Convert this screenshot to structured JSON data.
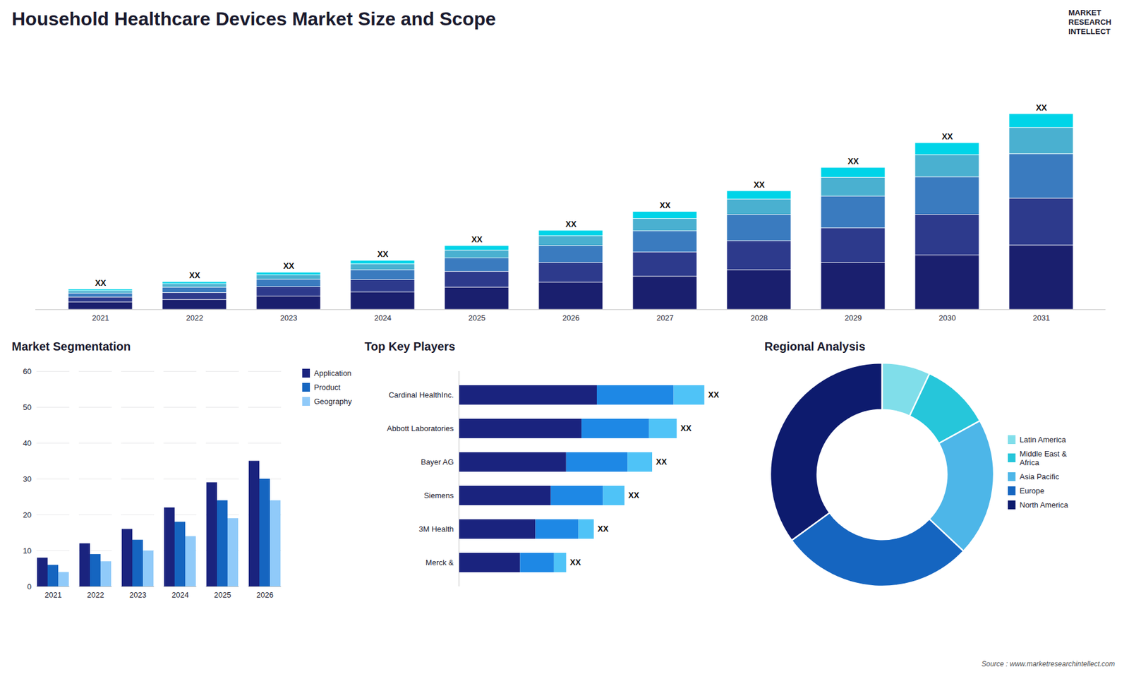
{
  "title": "Household Healthcare Devices Market Size and Scope",
  "annotations": [
    "MARKET",
    "RESEARCH",
    "INTELLECT",
    "Source : www.marketresearchintellect.com"
  ],
  "chart_data": [
    {
      "type": "bar",
      "stacked": true,
      "legend": false,
      "tick_labels": "x",
      "categories": [
        "2021",
        "2022",
        "2023",
        "2024",
        "2025",
        "2026",
        "2027",
        "2028",
        "2029",
        "2030",
        "2031"
      ],
      "series": [
        {
          "name": "North America",
          "color": "#1a1f6e",
          "values": [
            1.5,
            2.0,
            2.7,
            3.5,
            4.5,
            5.5,
            6.7,
            8.0,
            9.5,
            11.0,
            13.0
          ]
        },
        {
          "name": "Europe",
          "color": "#2d3a8c",
          "values": [
            1.0,
            1.4,
            1.9,
            2.5,
            3.2,
            4.0,
            4.9,
            5.9,
            7.0,
            8.2,
            9.5
          ]
        },
        {
          "name": "Asia Pacific",
          "color": "#3a7bbf",
          "values": [
            0.8,
            1.1,
            1.5,
            2.0,
            2.7,
            3.4,
            4.3,
            5.3,
            6.4,
            7.6,
            9.0
          ]
        },
        {
          "name": "Middle East & Africa",
          "color": "#4ab0d0",
          "values": [
            0.5,
            0.7,
            0.9,
            1.2,
            1.6,
            2.0,
            2.5,
            3.1,
            3.8,
            4.5,
            5.3
          ]
        },
        {
          "name": "Latin America",
          "color": "#00d4e8",
          "values": [
            0.3,
            0.4,
            0.5,
            0.7,
            0.9,
            1.1,
            1.4,
            1.7,
            2.0,
            2.4,
            2.8
          ]
        }
      ],
      "ylim": [
        0,
        49.5
      ],
      "annotations": [
        {
          "category": "2021",
          "text": "XX"
        },
        {
          "category": "2022",
          "text": "XX"
        },
        {
          "category": "2023",
          "text": "XX"
        },
        {
          "category": "2024",
          "text": "XX"
        },
        {
          "category": "2025",
          "text": "XX"
        },
        {
          "category": "2026",
          "text": "XX"
        },
        {
          "category": "2027",
          "text": "XX"
        },
        {
          "category": "2028",
          "text": "XX"
        },
        {
          "category": "2029",
          "text": "XX"
        },
        {
          "category": "2030",
          "text": "XX"
        },
        {
          "category": "2031",
          "text": "XX"
        }
      ]
    },
    {
      "type": "bar",
      "title": "Market Segmentation",
      "legend": "right",
      "grid": true,
      "categories": [
        "2021",
        "2022",
        "2023",
        "2024",
        "2025",
        "2026"
      ],
      "series": [
        {
          "name": "Application",
          "color": "#1a237e",
          "values": [
            8,
            12,
            16,
            22,
            29,
            35
          ]
        },
        {
          "name": "Product",
          "color": "#1565c0",
          "values": [
            6,
            9,
            13,
            18,
            24,
            30
          ]
        },
        {
          "name": "Geography",
          "color": "#90caf9",
          "values": [
            4,
            7,
            10,
            14,
            19,
            24
          ]
        }
      ],
      "ylim": [
        0,
        60
      ],
      "yticks": [
        0,
        10,
        20,
        30,
        40,
        50,
        60
      ]
    },
    {
      "type": "bar",
      "title": "Top Key Players",
      "orientation": "horizontal",
      "stacked": true,
      "tick_labels": "y",
      "categories": [
        "Cardinal HealthInc.",
        "Abbott Laboratories",
        "Bayer AG",
        "Siemens",
        "3M Health",
        "Merck &"
      ],
      "series": [
        {
          "color": "#1a237e",
          "values": [
            4.5,
            4.0,
            3.5,
            3.0,
            2.5,
            2.0
          ]
        },
        {
          "color": "#1e88e5",
          "values": [
            2.5,
            2.2,
            2.0,
            1.7,
            1.4,
            1.1
          ]
        },
        {
          "color": "#4fc3f7",
          "values": [
            1.0,
            0.9,
            0.8,
            0.7,
            0.5,
            0.4
          ]
        }
      ],
      "xlim": [
        0,
        9
      ],
      "annotations": [
        {
          "category": "Cardinal HealthInc.",
          "text": "XX"
        },
        {
          "category": "Abbott Laboratories",
          "text": "XX"
        },
        {
          "category": "Bayer AG",
          "text": "XX"
        },
        {
          "category": "Siemens",
          "text": "XX"
        },
        {
          "category": "3M Health",
          "text": "XX"
        },
        {
          "category": "Merck &",
          "text": "XX"
        }
      ]
    },
    {
      "type": "donut",
      "title": "Regional Analysis",
      "legend": "right",
      "categories": [
        "Latin America",
        "Middle East &\nAfrica",
        "Asia Pacific",
        "Europe",
        "North America"
      ],
      "values": [
        7,
        10,
        20,
        28,
        35
      ],
      "colors": [
        "#80deea",
        "#26c6da",
        "#4db6e8",
        "#1565c0",
        "#0d1b6e"
      ]
    }
  ]
}
